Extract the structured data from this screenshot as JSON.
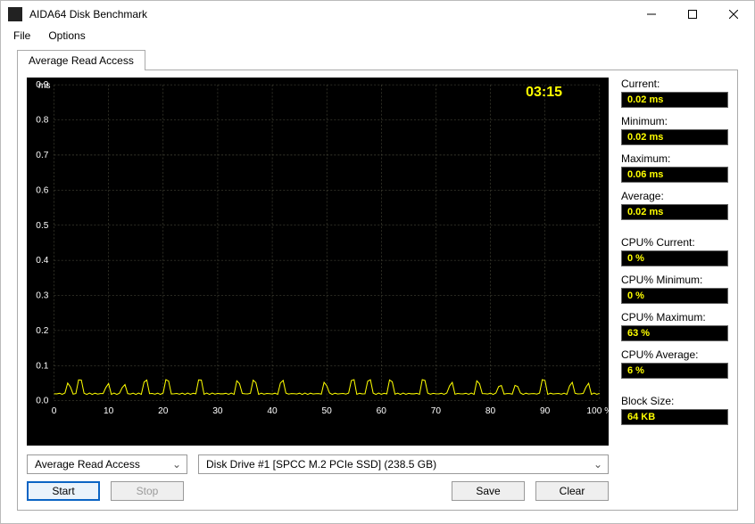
{
  "window": {
    "title": "AIDA64 Disk Benchmark"
  },
  "menu": {
    "file": "File",
    "options": "Options"
  },
  "tab": {
    "label": "Average Read Access"
  },
  "chart": {
    "type": "line",
    "background_color": "#000000",
    "grid_color": "#555544",
    "line_color": "#ffff00",
    "axis_text_color": "#ffffff",
    "timer_color": "#ffff00",
    "y_unit": "ms",
    "ylim": [
      0.0,
      0.9
    ],
    "ytick_step": 0.1,
    "yticks": [
      "0.0",
      "0.1",
      "0.2",
      "0.3",
      "0.4",
      "0.5",
      "0.6",
      "0.7",
      "0.8",
      "0.9"
    ],
    "xlim": [
      0,
      100
    ],
    "xtick_step": 10,
    "xticks": [
      "0",
      "10",
      "20",
      "30",
      "40",
      "50",
      "60",
      "70",
      "80",
      "90",
      "100 %"
    ],
    "timer": "03:15",
    "series_baseline": 0.02,
    "series_spike_max": 0.06,
    "series_spike_positions_pct": [
      3,
      5,
      10,
      13,
      17,
      21,
      27,
      34,
      37,
      42,
      50,
      55,
      58,
      62,
      68,
      73,
      78,
      82,
      85,
      90,
      95,
      98
    ],
    "label_fontsize": 10
  },
  "controls": {
    "test_select": "Average Read Access",
    "drive_select": "Disk Drive #1  [SPCC M.2 PCIe SSD]  (238.5 GB)",
    "start": "Start",
    "stop": "Stop",
    "save": "Save",
    "clear": "Clear"
  },
  "stats": {
    "current": {
      "label": "Current:",
      "value": "0.02 ms"
    },
    "minimum": {
      "label": "Minimum:",
      "value": "0.02 ms"
    },
    "maximum": {
      "label": "Maximum:",
      "value": "0.06 ms"
    },
    "average": {
      "label": "Average:",
      "value": "0.02 ms"
    },
    "cpu_current": {
      "label": "CPU% Current:",
      "value": "0 %"
    },
    "cpu_minimum": {
      "label": "CPU% Minimum:",
      "value": "0 %"
    },
    "cpu_maximum": {
      "label": "CPU% Maximum:",
      "value": "63 %"
    },
    "cpu_average": {
      "label": "CPU% Average:",
      "value": "6 %"
    },
    "block_size": {
      "label": "Block Size:",
      "value": "64 KB"
    }
  }
}
